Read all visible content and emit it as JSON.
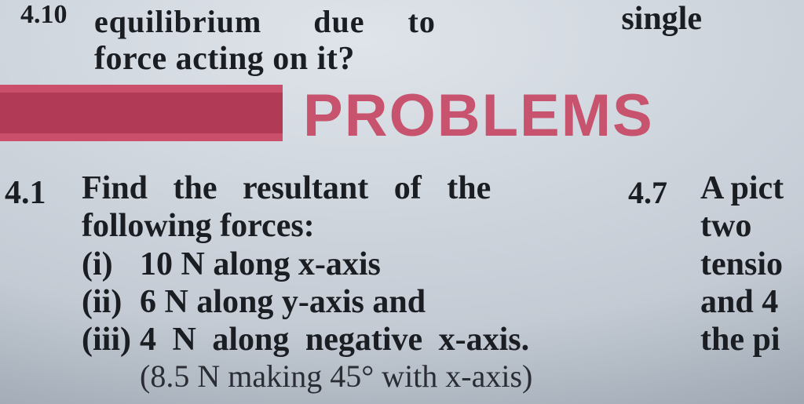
{
  "colors": {
    "page_bg_light": "#dfe4ea",
    "page_bg_mid": "#c4cbd4",
    "page_bg_dark": "#7f8a97",
    "text": "#1a1d22",
    "text_soft": "#2a2d33",
    "banner_bar": "#c94f6a",
    "banner_fill": "#b13a56",
    "problems_text": "#c7536e"
  },
  "top": {
    "qnum": "4.10",
    "line1_a": "equilibrium",
    "line1_b": "due",
    "line1_c": "to",
    "line1_d": "single",
    "line2": "force acting on it?"
  },
  "banner": {
    "word": "PROBLEMS"
  },
  "q41": {
    "num": "4.1",
    "line1": "Find the resultant of the",
    "line2": "following forces:",
    "items": [
      {
        "n": "(i)",
        "t": "10 N along x-axis"
      },
      {
        "n": "(ii)",
        "t": "6 N along y-axis and"
      },
      {
        "n": "(iii)",
        "t": "4 N along negative x-axis."
      }
    ],
    "answer": "(8.5 N making 45° with x-axis)"
  },
  "q47": {
    "num": "4.7",
    "lines": [
      "A pict",
      "two",
      "tensio",
      "and 4",
      "the pi"
    ]
  }
}
